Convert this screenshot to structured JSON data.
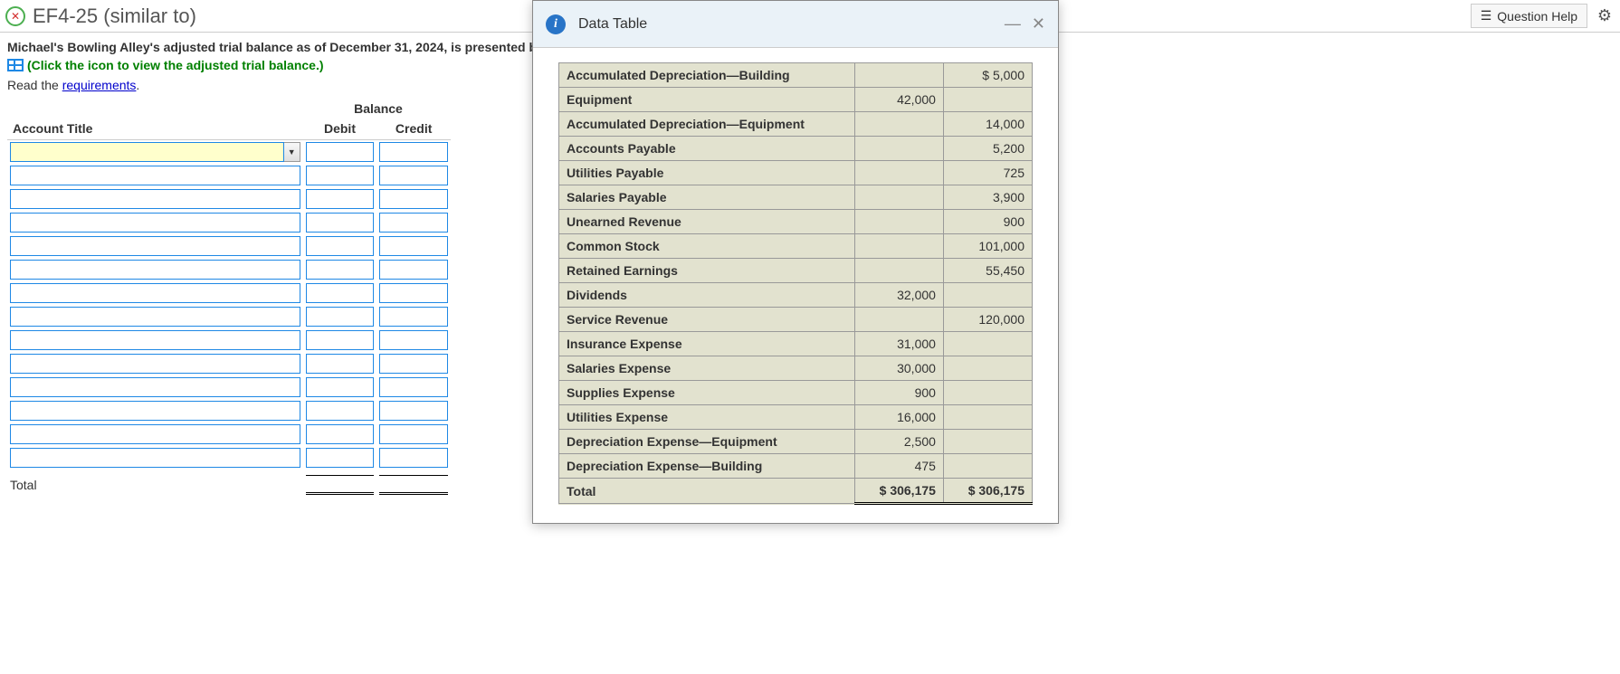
{
  "header": {
    "title": "EF4-25 (similar to)",
    "help_label": "Question Help"
  },
  "prompt": {
    "line1": "Michael's Bowling Alley's adjusted trial balance as of December 31, 2024, is presented bel",
    "line2": "(Click the icon to view the adjusted trial balance.)",
    "read_prefix": "Read the ",
    "read_link": "requirements",
    "read_suffix": "."
  },
  "worksheet": {
    "balance_label": "Balance",
    "col_account": "Account Title",
    "col_debit": "Debit",
    "col_credit": "Credit",
    "total_label": "Total",
    "rows": 14
  },
  "modal": {
    "title": "Data Table",
    "rows": [
      {
        "label": "Accumulated Depreciation—Building",
        "debit": "",
        "credit": "5,000",
        "sym": "$"
      },
      {
        "label": "Equipment",
        "debit": "42,000",
        "credit": ""
      },
      {
        "label": "Accumulated Depreciation—Equipment",
        "debit": "",
        "credit": "14,000"
      },
      {
        "label": "Accounts Payable",
        "debit": "",
        "credit": "5,200"
      },
      {
        "label": "Utilities Payable",
        "debit": "",
        "credit": "725"
      },
      {
        "label": "Salaries Payable",
        "debit": "",
        "credit": "3,900"
      },
      {
        "label": "Unearned Revenue",
        "debit": "",
        "credit": "900"
      },
      {
        "label": "Common Stock",
        "debit": "",
        "credit": "101,000"
      },
      {
        "label": "Retained Earnings",
        "debit": "",
        "credit": "55,450"
      },
      {
        "label": "Dividends",
        "debit": "32,000",
        "credit": ""
      },
      {
        "label": "Service Revenue",
        "debit": "",
        "credit": "120,000"
      },
      {
        "label": "Insurance Expense",
        "debit": "31,000",
        "credit": ""
      },
      {
        "label": "Salaries Expense",
        "debit": "30,000",
        "credit": ""
      },
      {
        "label": "Supplies Expense",
        "debit": "900",
        "credit": ""
      },
      {
        "label": "Utilities Expense",
        "debit": "16,000",
        "credit": ""
      },
      {
        "label": "Depreciation Expense—Equipment",
        "debit": "2,500",
        "credit": ""
      },
      {
        "label": "Depreciation Expense—Building",
        "debit": "475",
        "credit": ""
      }
    ],
    "total_label": "Total",
    "total_debit": "306,175",
    "total_credit": "306,175"
  },
  "colors": {
    "modal_header": "#eaf2f8",
    "table_bg": "#e2e2cf",
    "input_border": "#1e88e5",
    "active_bg": "#ffffcc",
    "hint_green": "#008000"
  }
}
